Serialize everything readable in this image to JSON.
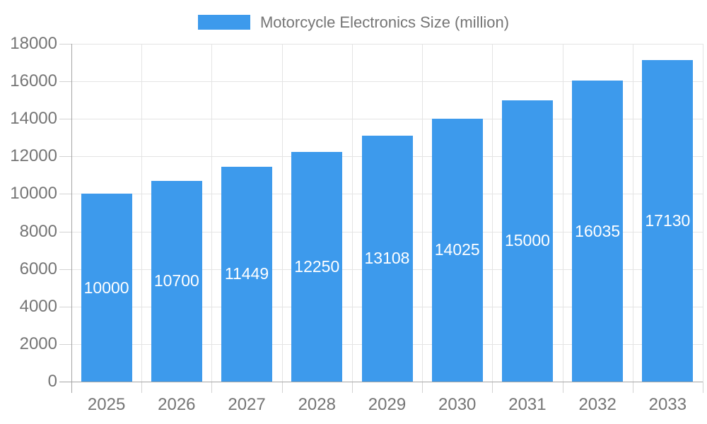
{
  "legend": {
    "label": "Motorcycle Electronics Size (million)"
  },
  "chart_data": {
    "type": "bar",
    "title": "Motorcycle Electronics Size (million)",
    "categories": [
      "2025",
      "2026",
      "2027",
      "2028",
      "2029",
      "2030",
      "2031",
      "2032",
      "2033"
    ],
    "values": [
      10000,
      10700,
      11449,
      12250,
      13108,
      14025,
      15000,
      16035,
      17130
    ],
    "xlabel": "",
    "ylabel": "",
    "ylim": [
      0,
      18000
    ],
    "yticks": [
      0,
      2000,
      4000,
      6000,
      8000,
      10000,
      12000,
      14000,
      16000,
      18000
    ],
    "grid": true,
    "legend_position": "top",
    "value_labels": "inside-center"
  },
  "colors": {
    "bar": "#3d9aec",
    "bar_label": "#ffffff",
    "axis_text": "#757575",
    "grid": "#e4e4e4",
    "tick": "#d2d2d2",
    "axis_line": "#a5a5a5",
    "background": "#ffffff"
  }
}
